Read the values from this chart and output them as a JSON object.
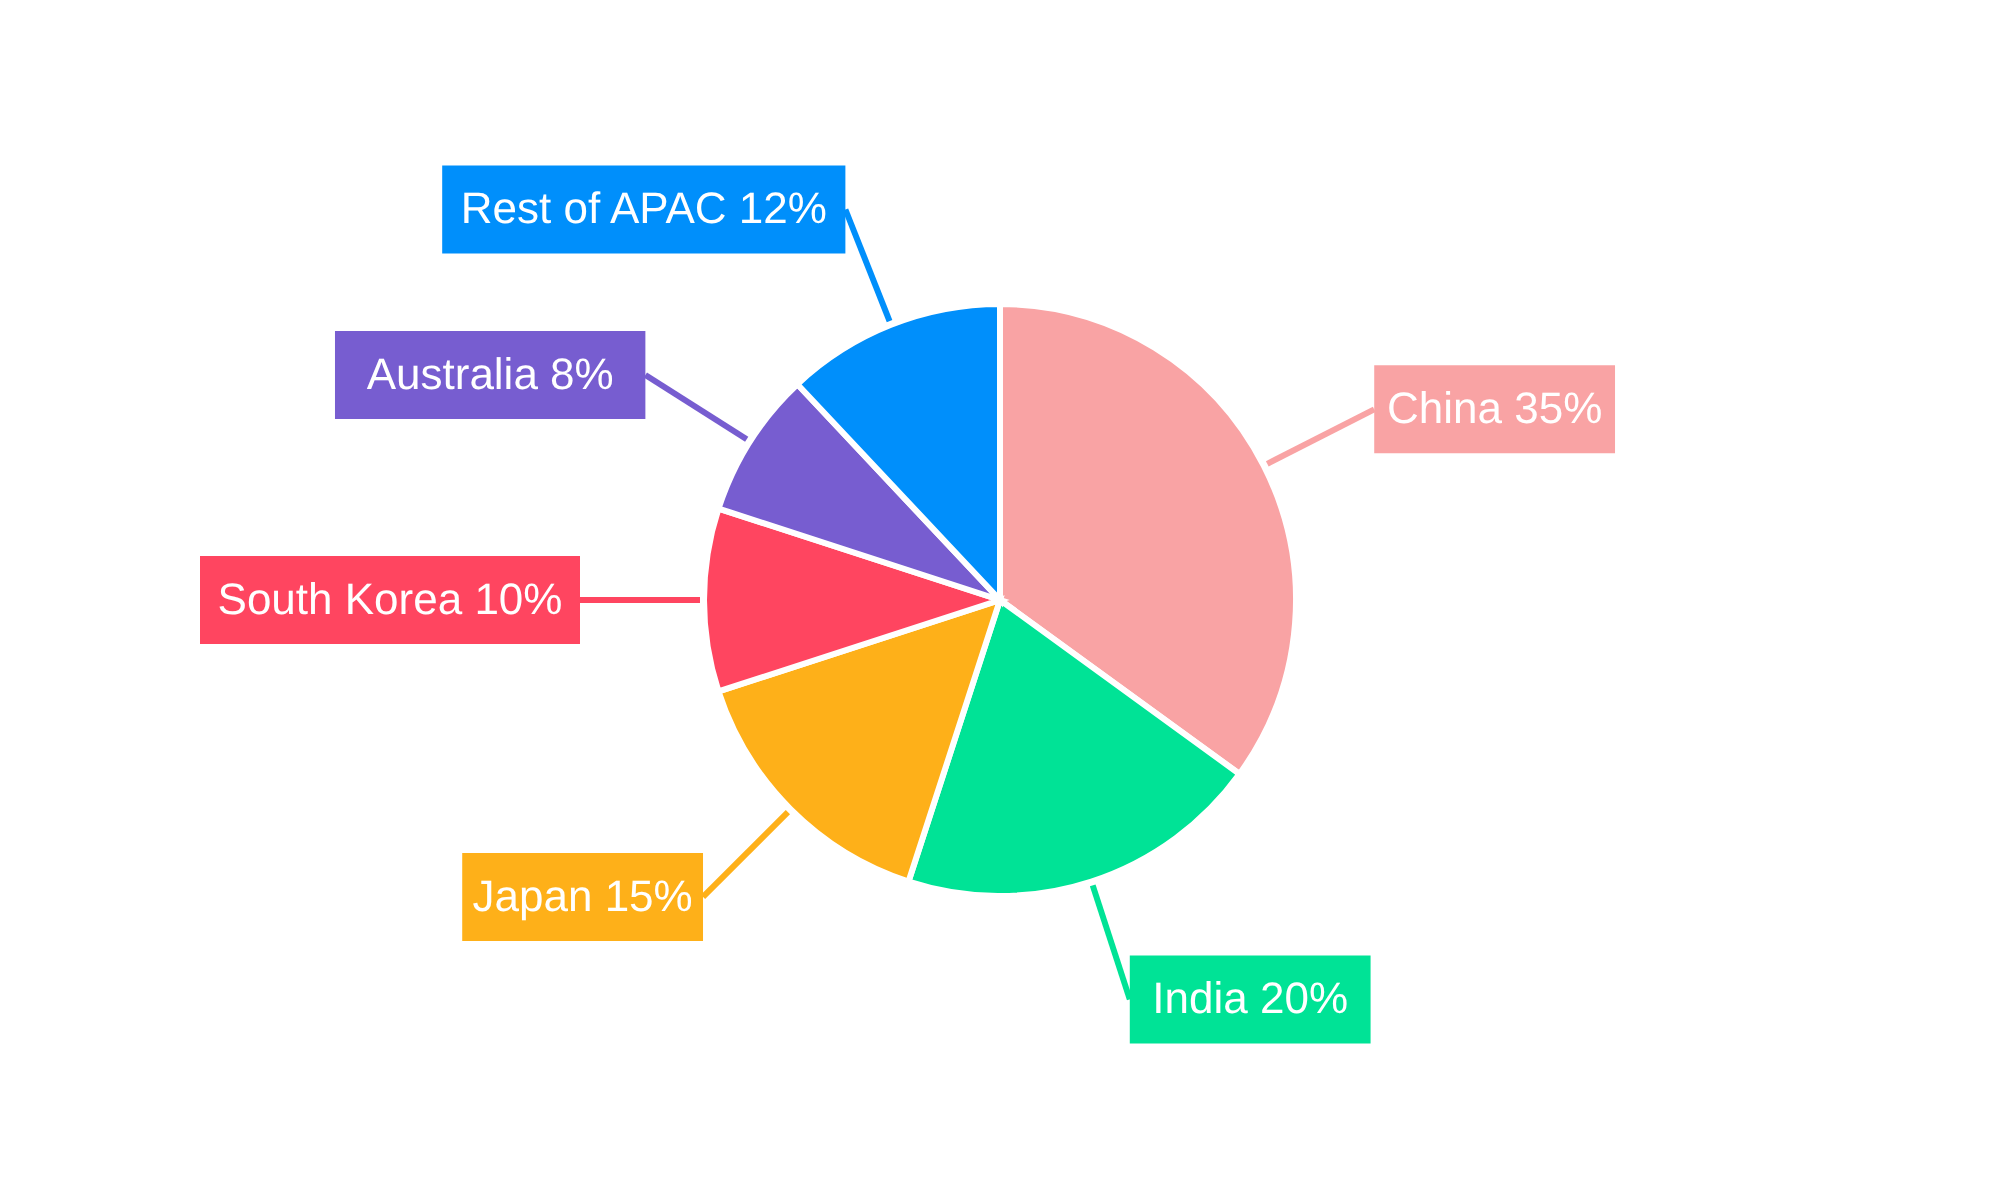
{
  "chart_data": {
    "type": "pie",
    "categories": [
      "China",
      "India",
      "Japan",
      "South Korea",
      "Australia",
      "Rest of APAC"
    ],
    "values": [
      35,
      20,
      15,
      10,
      8,
      12
    ],
    "value_labels": [
      "35%",
      "20%",
      "15%",
      "10%",
      "8%",
      "12%"
    ],
    "colors": [
      "#f9a3a4",
      "#00e396",
      "#feb019",
      "#ff4560",
      "#775dd0",
      "#008ffb"
    ]
  }
}
